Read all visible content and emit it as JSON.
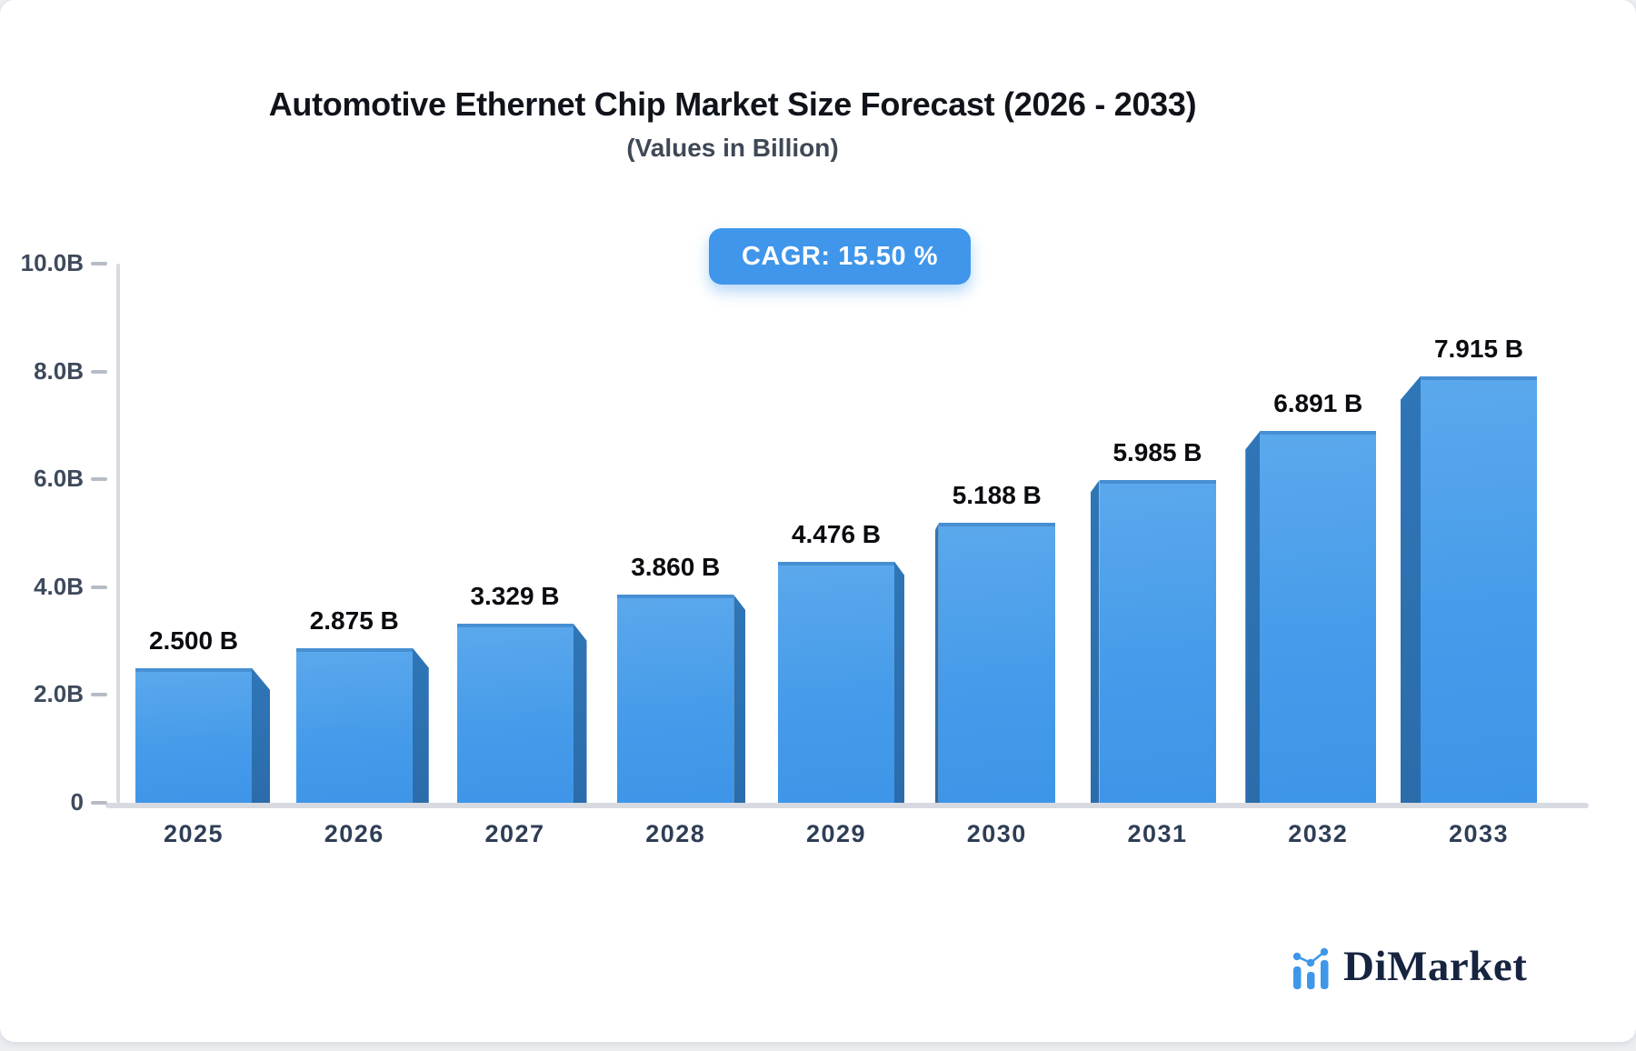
{
  "header": {
    "title": "Automotive Ethernet Chip Market Size Forecast (2026 - 2033)",
    "subtitle": "(Values in Billion)"
  },
  "badge": {
    "label": "CAGR: 15.50 %"
  },
  "chart_data": {
    "type": "bar",
    "title": "Automotive Ethernet Chip Market Size Forecast (2026 - 2033)",
    "subtitle": "(Values in Billion)",
    "unit": "Billion",
    "categories": [
      "2025",
      "2026",
      "2027",
      "2028",
      "2029",
      "2030",
      "2031",
      "2032",
      "2033"
    ],
    "values": [
      2.5,
      2.875,
      3.329,
      3.86,
      4.476,
      5.188,
      5.985,
      6.891,
      7.915
    ],
    "value_labels": [
      "2.500 B",
      "2.875 B",
      "3.329 B",
      "3.860 B",
      "4.476 B",
      "5.188 B",
      "5.985 B",
      "6.891 B",
      "7.915 B"
    ],
    "y_ticks": [
      "10.0B",
      "8.0B",
      "6.0B",
      "4.0B",
      "2.0B",
      "0"
    ],
    "y_tick_values": [
      10,
      8,
      6,
      4,
      2,
      0
    ],
    "ylim": [
      0,
      10
    ],
    "cagr": "15.50 %",
    "grid": false,
    "legend": false,
    "bar_color_top": "#5BA8EC",
    "bar_color_bottom": "#3E95E8",
    "bar_side_color": "#2E72B2",
    "axis_color": "#d7dae0"
  },
  "branding": {
    "logo_text": "DiMarket",
    "logo_icon": "mini-bar-chart-icon",
    "accent_color": "#3F97EA",
    "text_color": "#172440"
  }
}
